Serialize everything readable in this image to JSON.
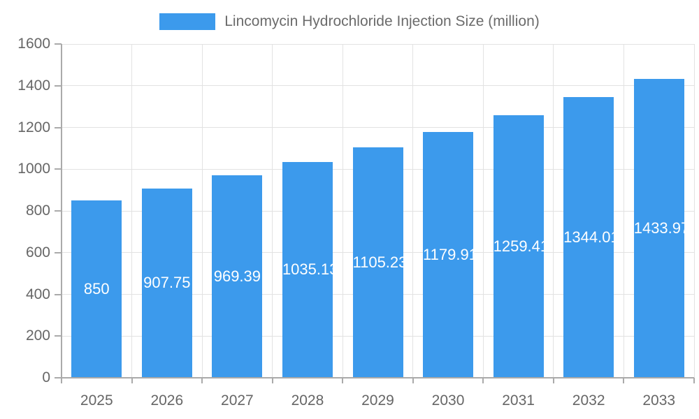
{
  "legend": {
    "label": "Lincomycin Hydrochloride Injection Size (million)"
  },
  "chart_data": {
    "type": "bar",
    "title": "Lincomycin Hydrochloride Injection Size (million)",
    "categories": [
      "2025",
      "2026",
      "2027",
      "2028",
      "2029",
      "2030",
      "2031",
      "2032",
      "2033"
    ],
    "values": [
      850,
      907.75,
      969.39,
      1035.13,
      1105.23,
      1179.91,
      1259.41,
      1344.01,
      1433.97
    ],
    "value_labels": [
      "850",
      "907.75",
      "969.39",
      "1035.13",
      "1105.23",
      "1179.91",
      "1259.41",
      "1344.01",
      "1433.97"
    ],
    "xlabel": "",
    "ylabel": "",
    "ylim": [
      0,
      1600
    ],
    "y_ticks": [
      0,
      200,
      400,
      600,
      800,
      1000,
      1200,
      1400,
      1600
    ],
    "grid": true,
    "legend_position": "top",
    "colors": {
      "bar": "#3c9aec",
      "grid_line": "#e2e2e2",
      "axis_line": "#aaaaaa",
      "tick_text": "#666666",
      "bar_label_text": "#ffffff"
    }
  }
}
